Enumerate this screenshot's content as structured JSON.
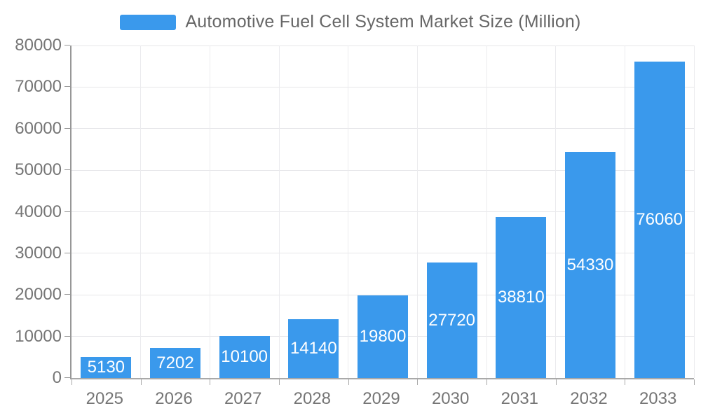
{
  "legend": {
    "label": "Automotive Fuel Cell System Market Size (Million)",
    "swatch_color": "#3a99ec"
  },
  "chart_data": {
    "type": "bar",
    "title": "Automotive Fuel Cell System Market Size (Million)",
    "categories": [
      "2025",
      "2026",
      "2027",
      "2028",
      "2029",
      "2030",
      "2031",
      "2032",
      "2033"
    ],
    "values": [
      5130,
      7202,
      10100,
      14140,
      19800,
      27720,
      38810,
      54330,
      76060
    ],
    "xlabel": "",
    "ylabel": "",
    "ylim": [
      0,
      80000
    ],
    "ytick_interval": 10000,
    "ytick_labels": [
      "0",
      "10000",
      "20000",
      "30000",
      "40000",
      "50000",
      "60000",
      "70000",
      "80000"
    ],
    "grid": true,
    "legend_position": "top-center",
    "bar_color": "#3a99ec",
    "bar_label_color": "#ffffff",
    "axis_line_color": "#9a9a9a",
    "grid_line_color": "#e6e6e9",
    "tick_label_color": "#757575"
  }
}
